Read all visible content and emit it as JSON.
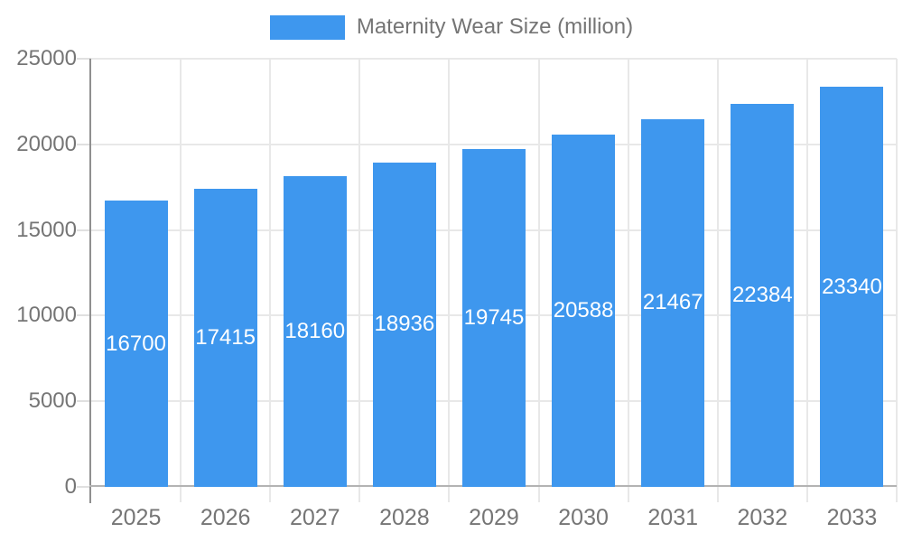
{
  "legend": {
    "label": "Maternity Wear Size (million)"
  },
  "chart_data": {
    "type": "bar",
    "title": "Maternity Wear Size (million)",
    "categories": [
      "2025",
      "2026",
      "2027",
      "2028",
      "2029",
      "2030",
      "2031",
      "2032",
      "2033"
    ],
    "values": [
      16700,
      17415,
      18160,
      18936,
      19745,
      20588,
      21467,
      22384,
      23340
    ],
    "series_name": "Maternity Wear Size (million)",
    "xlabel": "",
    "ylabel": "",
    "ylim": [
      0,
      25000
    ],
    "yticks": [
      0,
      5000,
      10000,
      15000,
      20000,
      25000
    ],
    "grid": true,
    "legend_position": "top-center",
    "bar_label_position": "inside-center",
    "colors": {
      "bar": "#3E97EE",
      "bar_label": "#ffffff",
      "grid": "#e8e8e8",
      "tick": "#e0e0e0",
      "axis": "#8f8f8f",
      "baseline": "#b3b3b3",
      "text": "#757575"
    }
  }
}
